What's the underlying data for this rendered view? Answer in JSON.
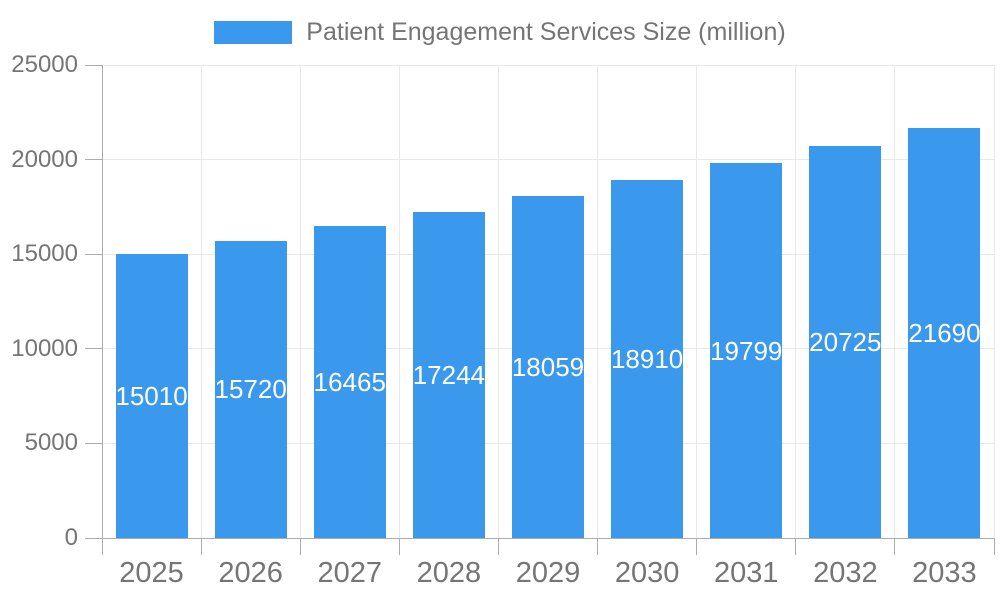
{
  "chart_data": {
    "type": "bar",
    "title": "",
    "series_name": "Patient Engagement Services Size (million)",
    "legend_position": "top",
    "categories": [
      "2025",
      "2026",
      "2027",
      "2028",
      "2029",
      "2030",
      "2031",
      "2032",
      "2033"
    ],
    "values": [
      15010,
      15720,
      16465,
      17244,
      18059,
      18910,
      19799,
      20725,
      21690
    ],
    "value_labels": [
      "15010",
      "15720",
      "16465",
      "17244",
      "18059",
      "18910",
      "19799",
      "20725",
      "21690"
    ],
    "xlabel": "",
    "ylabel": "",
    "ylim": [
      0,
      25000
    ],
    "yticks": [
      0,
      5000,
      10000,
      15000,
      20000,
      25000
    ],
    "ytick_labels": [
      "0",
      "5000",
      "10000",
      "15000",
      "20000",
      "25000"
    ],
    "grid": true
  },
  "colors": {
    "bar": "#3a98ed",
    "text": "#757575",
    "grid": "#e8e8e8",
    "axis": "#ababab",
    "value_label": "#ffffff",
    "background": "#ffffff"
  }
}
